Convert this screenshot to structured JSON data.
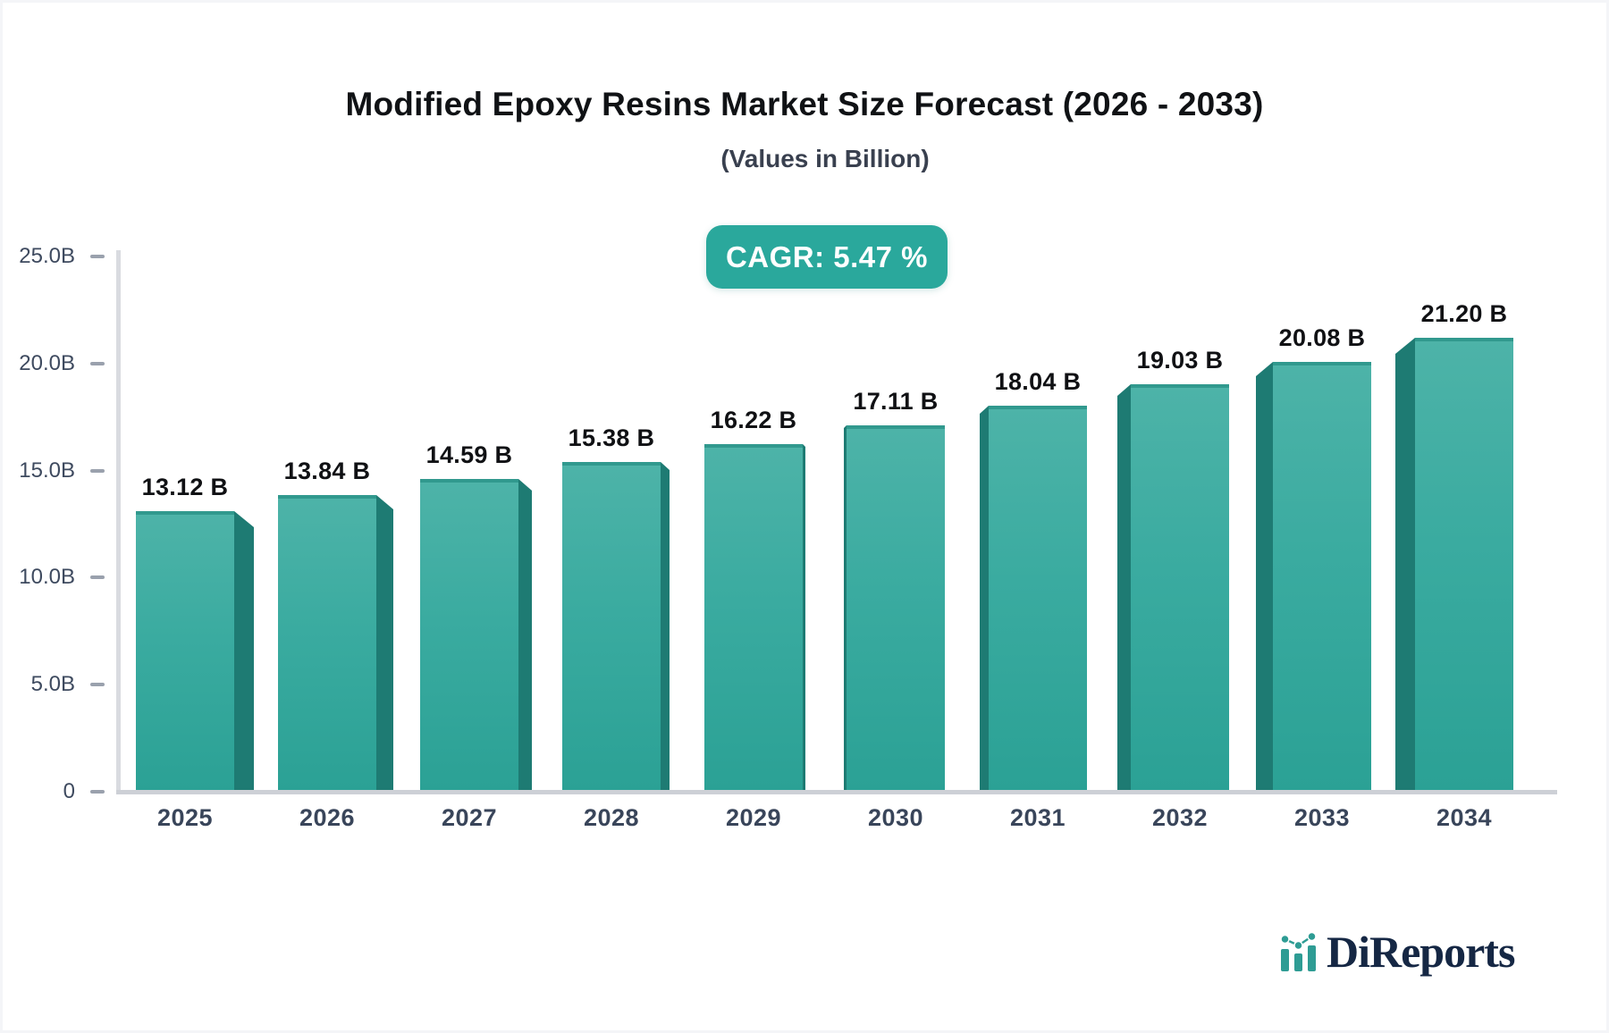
{
  "header": {
    "title": "Modified Epoxy Resins Market Size Forecast (2026 - 2033)",
    "subtitle": "(Values in Billion)"
  },
  "badge": {
    "label": "CAGR: 5.47 %",
    "background_color": "#2aa89c",
    "text_color": "#ffffff"
  },
  "brand": {
    "name": "DiReports",
    "icon": "mini-bar-line-chart-icon",
    "icon_color": "#2e9c94",
    "text_color": "#152744"
  },
  "chart_data": {
    "type": "bar",
    "title": "Modified Epoxy Resins Market Size Forecast (2026 - 2033)",
    "subtitle": "(Values in Billion)",
    "cagr_annotation": "CAGR: 5.47 %",
    "categories": [
      "2025",
      "2026",
      "2027",
      "2028",
      "2029",
      "2030",
      "2031",
      "2032",
      "2033",
      "2034"
    ],
    "values": [
      13.12,
      13.84,
      14.59,
      15.38,
      16.22,
      17.11,
      18.04,
      19.03,
      20.08,
      21.2
    ],
    "value_labels": [
      "13.12 B",
      "13.84 B",
      "14.59 B",
      "15.38 B",
      "16.22 B",
      "17.11 B",
      "18.04 B",
      "19.03 B",
      "20.08 B",
      "21.20 B"
    ],
    "unit": "Billion",
    "xlabel": "",
    "ylabel": "",
    "ylim": [
      0,
      25
    ],
    "yticks": [
      {
        "value": 25,
        "label": "25.0B"
      },
      {
        "value": 20,
        "label": "20.0B"
      },
      {
        "value": 15,
        "label": "15.0B"
      },
      {
        "value": 10,
        "label": "10.0B"
      },
      {
        "value": 5,
        "label": "5.0B"
      },
      {
        "value": 0,
        "label": "0"
      }
    ],
    "grid": false,
    "legend": "none",
    "style": "3d-perspective-bars",
    "bar_face_color_top": "#4db3a8",
    "bar_face_color_bottom": "#2ba195",
    "bar_side_color": "#1e7b73"
  }
}
